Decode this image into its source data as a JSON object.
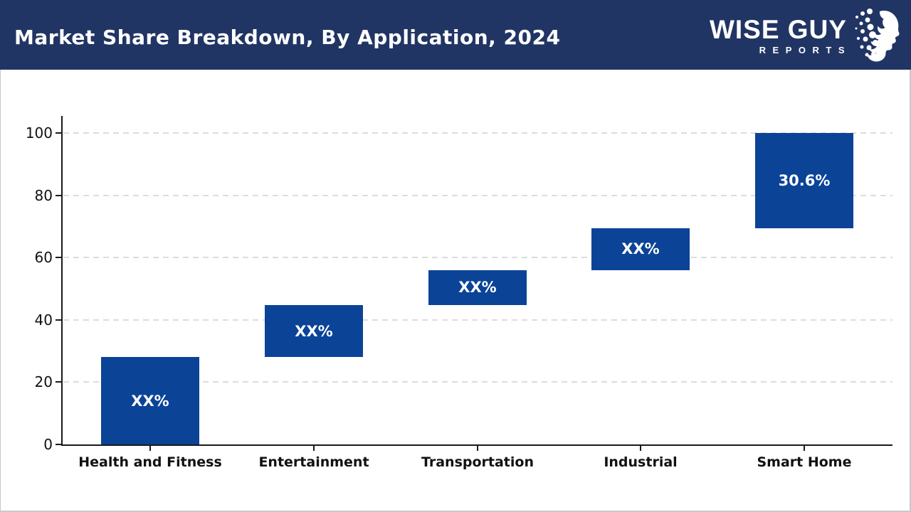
{
  "header": {
    "title": "Market Share Breakdown, By Application, 2024",
    "logo": {
      "line1": "WISE GUY",
      "line2": "REPORTS"
    }
  },
  "watermark": {
    "line1": "WISE GUY",
    "line2": "REPORTS"
  },
  "colors": {
    "header_bg": "#213564",
    "bar_fill": "#0b4397",
    "bar_label": "#ffffff",
    "gridline": "#dcdcdc",
    "axis": "#1a1a1a",
    "watermark": "#f0f0f0",
    "border": "#c9c9c9"
  },
  "chart_data": {
    "type": "bar",
    "subtype": "waterfall-floating-bars",
    "title": "Market Share Breakdown, By Application, 2024",
    "categories": [
      "Health and Fitness",
      "Entertainment",
      "Transportation",
      "Industrial",
      "Smart Home"
    ],
    "segments": [
      {
        "category": "Health and Fitness",
        "start": 0,
        "end": 28.0,
        "value_label": "XX%"
      },
      {
        "category": "Entertainment",
        "start": 28.0,
        "end": 44.8,
        "value_label": "XX%"
      },
      {
        "category": "Transportation",
        "start": 44.8,
        "end": 56.0,
        "value_label": "XX%"
      },
      {
        "category": "Industrial",
        "start": 56.0,
        "end": 69.4,
        "value_label": "XX%"
      },
      {
        "category": "Smart Home",
        "start": 69.4,
        "end": 100.0,
        "value_label": "30.6%",
        "value": 30.6
      }
    ],
    "yticks": [
      0,
      20,
      40,
      60,
      80,
      100
    ],
    "ylim": [
      0,
      105
    ],
    "xlabel": "",
    "ylabel": "",
    "grid": "horizontal-dashed",
    "legend": "none"
  }
}
